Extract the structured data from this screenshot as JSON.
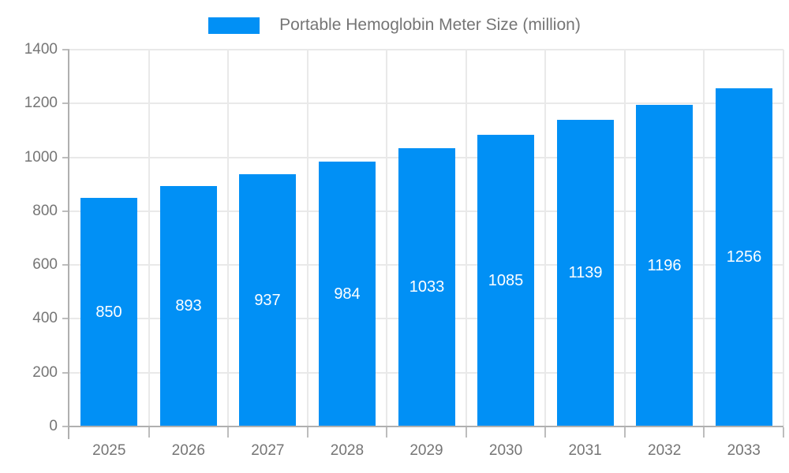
{
  "chart_data": {
    "type": "bar",
    "title": "Portable Hemoglobin Meter Size (million)",
    "categories": [
      "2025",
      "2026",
      "2027",
      "2028",
      "2029",
      "2030",
      "2031",
      "2032",
      "2033"
    ],
    "values": [
      850,
      893,
      937,
      984,
      1033,
      1085,
      1139,
      1196,
      1256
    ],
    "xlabel": "",
    "ylabel": "",
    "ylim": [
      0,
      1400
    ],
    "yticks": [
      0,
      200,
      400,
      600,
      800,
      1000,
      1200,
      1400
    ],
    "grid": true,
    "legend_position": "top-center",
    "bar_labels": [
      "850",
      "893",
      "937",
      "984",
      "1033",
      "1085",
      "1139",
      "1196",
      "1256"
    ]
  },
  "colors": {
    "bar": "#0190F5",
    "bar_label_text": "#FFFFFF",
    "grid": "#E9E9E9",
    "axis": "#B0B0B0",
    "tick": "#BDBDBD",
    "text": "#757575"
  }
}
